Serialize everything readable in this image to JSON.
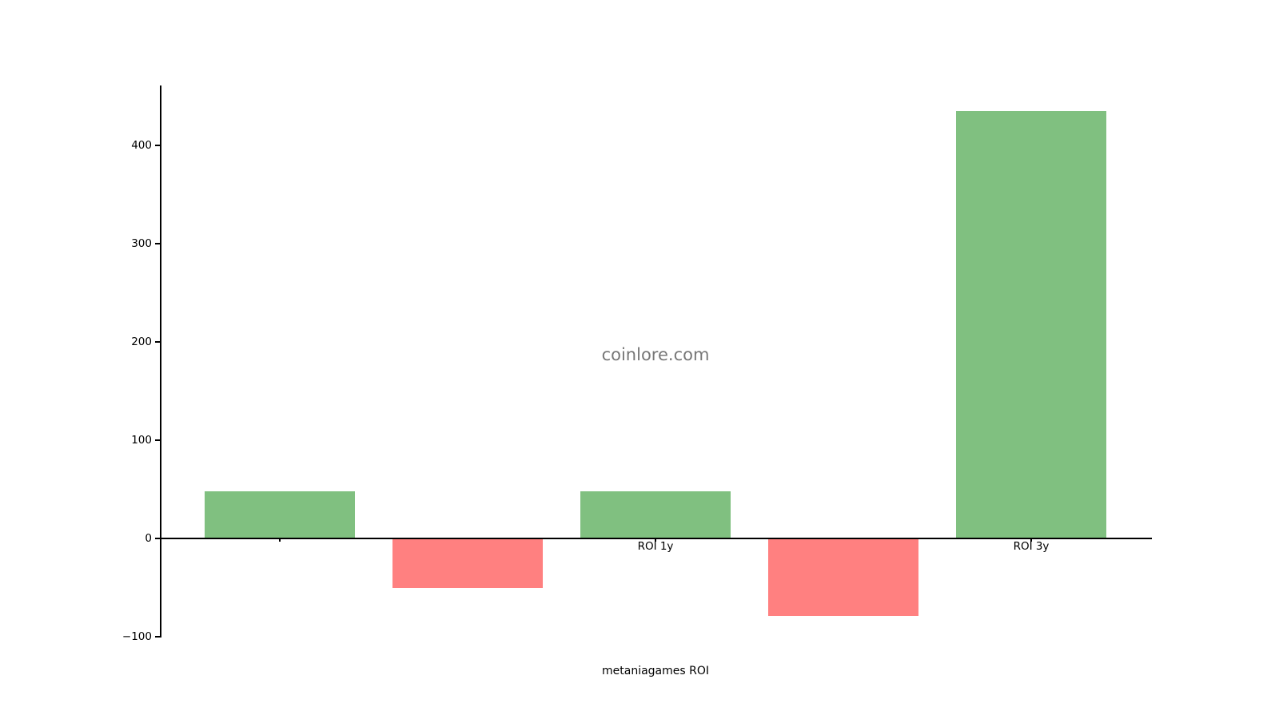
{
  "chart_data": {
    "type": "bar",
    "xlabel": "metaniagames ROI",
    "ylabel": "",
    "watermark": "coinlore.com",
    "watermark_color": "#777777",
    "categories": [
      "",
      "",
      "ROI 1y",
      "",
      "ROI 3y"
    ],
    "values": [
      48,
      -50,
      48,
      -79,
      435
    ],
    "bar_colors": {
      "positive": "#80C080",
      "negative": "#FF8080"
    },
    "axis_color": "#000000",
    "yticks": [
      400,
      300,
      200,
      100,
      0,
      -100
    ],
    "ytick_labels": [
      "400",
      "300",
      "200",
      "100",
      "0",
      "−100"
    ],
    "ylim": [
      -100,
      460
    ],
    "grid": false,
    "legend": false
  }
}
